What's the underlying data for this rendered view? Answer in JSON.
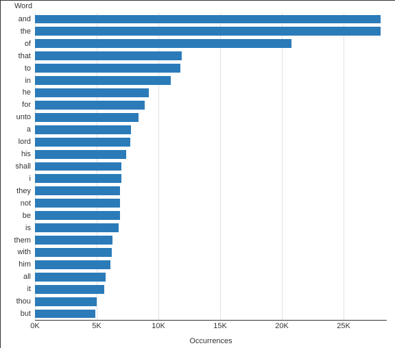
{
  "chart": {
    "type": "bar-horizontal",
    "y_title": "Word",
    "x_title": "Occurrences",
    "background_color": "#ffffff",
    "bar_color": "#2b7bb9",
    "grid_color": "#e0e0e0",
    "border_color": "#333333",
    "text_color": "#333333",
    "title_fontsize": 11,
    "label_fontsize": 11,
    "xlim": [
      0,
      28500
    ],
    "x_ticks": [
      {
        "value": 0,
        "label": "0K"
      },
      {
        "value": 5000,
        "label": "5K"
      },
      {
        "value": 10000,
        "label": "10K"
      },
      {
        "value": 15000,
        "label": "15K"
      },
      {
        "value": 20000,
        "label": "20K"
      },
      {
        "value": 25000,
        "label": "25K"
      }
    ],
    "bar_height_ratio": 0.72,
    "categories": [
      "and",
      "the",
      "of",
      "that",
      "to",
      "in",
      "he",
      "for",
      "unto",
      "a",
      "lord",
      "his",
      "shall",
      "i",
      "they",
      "not",
      "be",
      "is",
      "them",
      "with",
      "him",
      "all",
      "it",
      "thou",
      "but"
    ],
    "values": [
      28000,
      28000,
      20800,
      11900,
      11800,
      11000,
      9200,
      8900,
      8400,
      7800,
      7700,
      7400,
      7000,
      7000,
      6900,
      6900,
      6900,
      6800,
      6300,
      6200,
      6100,
      5700,
      5600,
      5000,
      4900
    ]
  }
}
